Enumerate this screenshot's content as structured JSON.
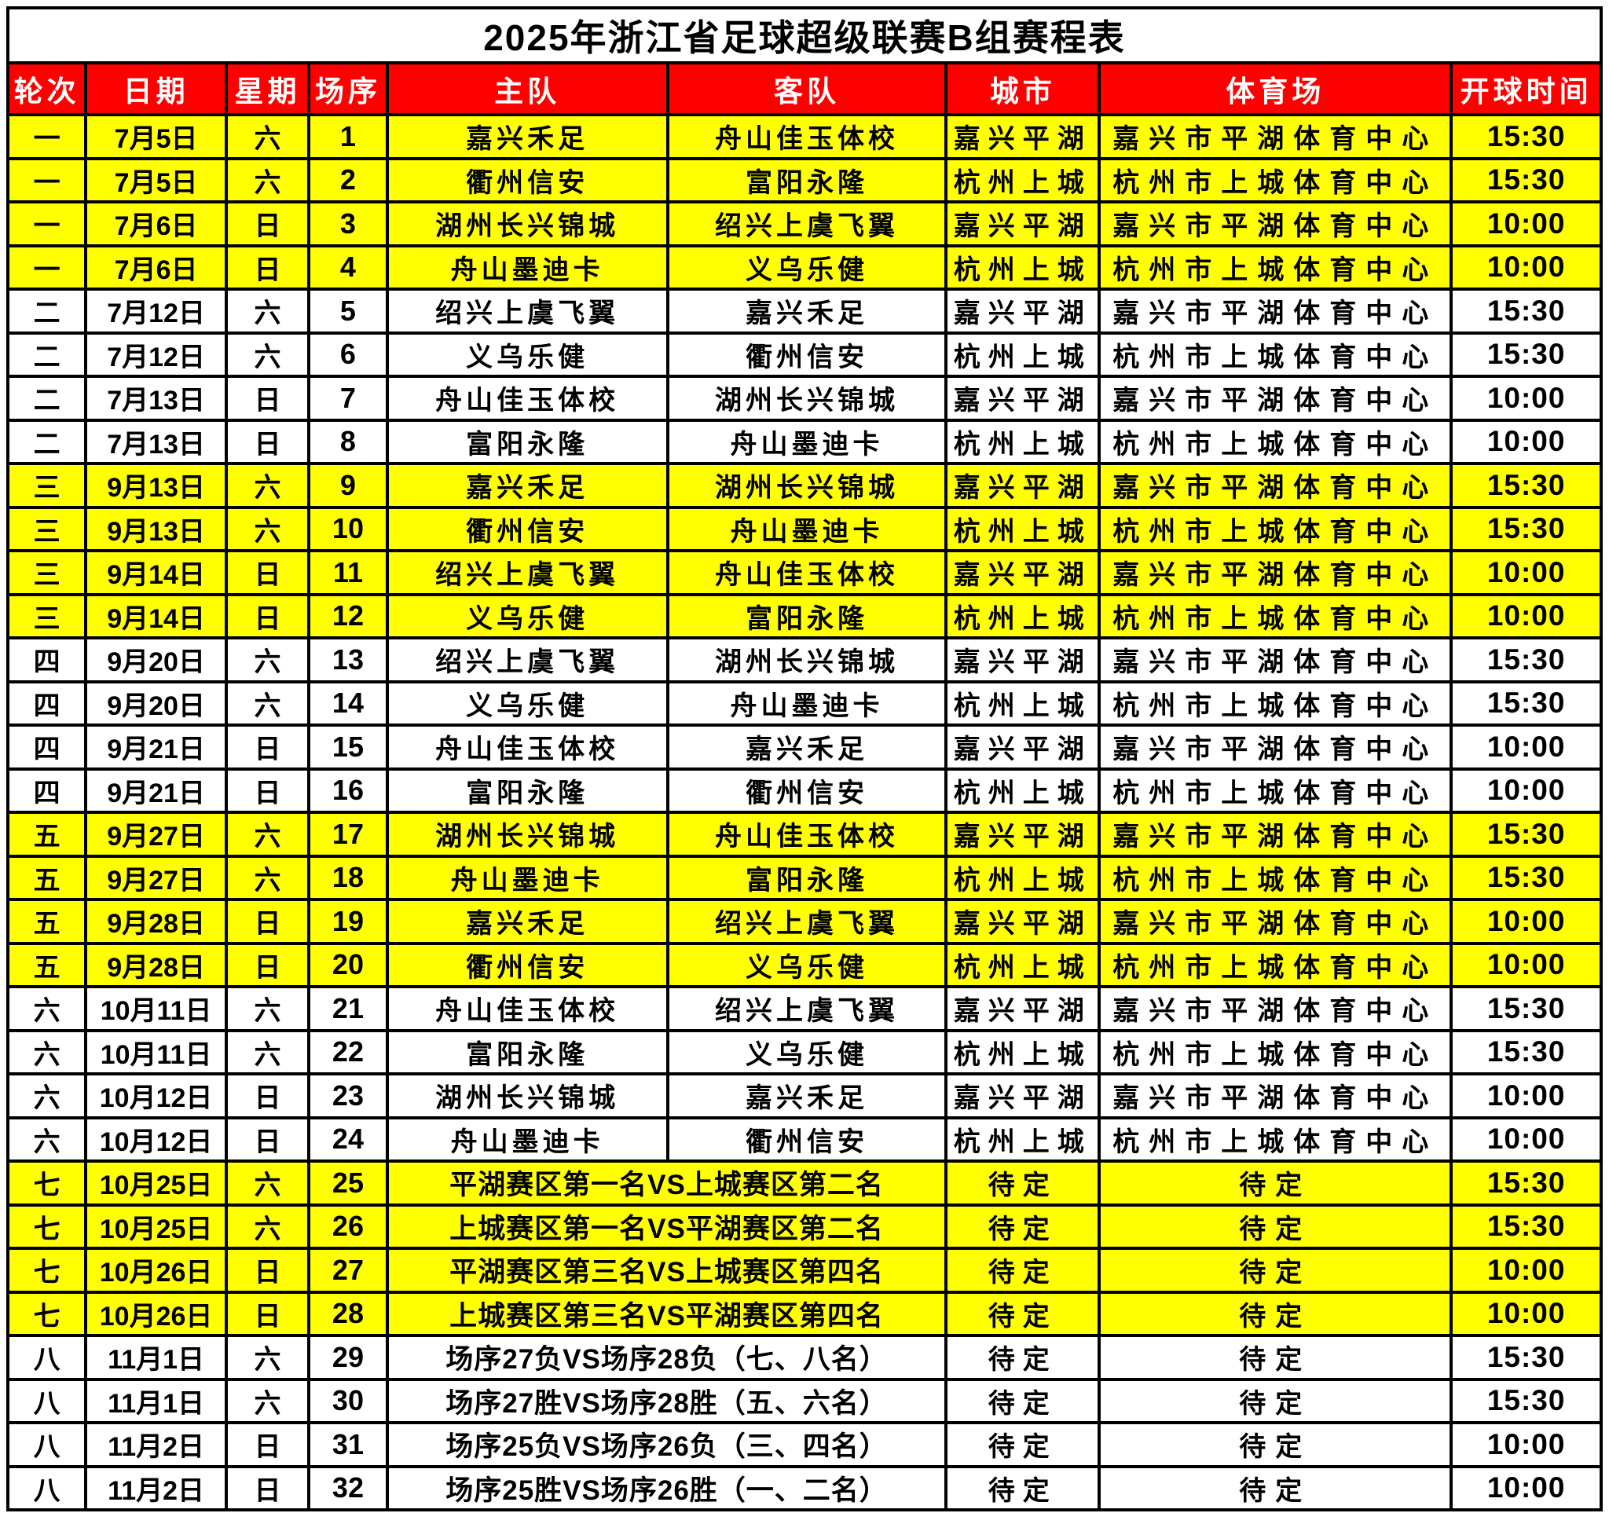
{
  "title": "2025年浙江省足球超级联赛B组赛程表",
  "table": {
    "columns": [
      "轮次",
      "日期",
      "星期",
      "场序",
      "主队",
      "客队",
      "城市",
      "体育场",
      "开球时间"
    ],
    "highlighted_rounds": [
      "一",
      "三",
      "五",
      "七"
    ],
    "colors": {
      "header_bg": "#ff0000",
      "header_text": "#ffffff",
      "highlight_bg": "#ffff00",
      "row_bg": "#ffffff",
      "border": "#000000",
      "body_text": "#000000"
    },
    "rows": [
      {
        "round": "一",
        "date": "7月5日",
        "weekday": "六",
        "match_no": "1",
        "home": "嘉兴禾足",
        "away": "舟山佳玉体校",
        "city": "嘉兴平湖",
        "stadium": "嘉兴市平湖体育中心",
        "time": "15:30"
      },
      {
        "round": "一",
        "date": "7月5日",
        "weekday": "六",
        "match_no": "2",
        "home": "衢州信安",
        "away": "富阳永隆",
        "city": "杭州上城",
        "stadium": "杭州市上城体育中心",
        "time": "15:30"
      },
      {
        "round": "一",
        "date": "7月6日",
        "weekday": "日",
        "match_no": "3",
        "home": "湖州长兴锦城",
        "away": "绍兴上虞飞翼",
        "city": "嘉兴平湖",
        "stadium": "嘉兴市平湖体育中心",
        "time": "10:00"
      },
      {
        "round": "一",
        "date": "7月6日",
        "weekday": "日",
        "match_no": "4",
        "home": "舟山墨迪卡",
        "away": "义乌乐健",
        "city": "杭州上城",
        "stadium": "杭州市上城体育中心",
        "time": "10:00"
      },
      {
        "round": "二",
        "date": "7月12日",
        "weekday": "六",
        "match_no": "5",
        "home": "绍兴上虞飞翼",
        "away": "嘉兴禾足",
        "city": "嘉兴平湖",
        "stadium": "嘉兴市平湖体育中心",
        "time": "15:30"
      },
      {
        "round": "二",
        "date": "7月12日",
        "weekday": "六",
        "match_no": "6",
        "home": "义乌乐健",
        "away": "衢州信安",
        "city": "杭州上城",
        "stadium": "杭州市上城体育中心",
        "time": "15:30"
      },
      {
        "round": "二",
        "date": "7月13日",
        "weekday": "日",
        "match_no": "7",
        "home": "舟山佳玉体校",
        "away": "湖州长兴锦城",
        "city": "嘉兴平湖",
        "stadium": "嘉兴市平湖体育中心",
        "time": "10:00"
      },
      {
        "round": "二",
        "date": "7月13日",
        "weekday": "日",
        "match_no": "8",
        "home": "富阳永隆",
        "away": "舟山墨迪卡",
        "city": "杭州上城",
        "stadium": "杭州市上城体育中心",
        "time": "10:00"
      },
      {
        "round": "三",
        "date": "9月13日",
        "weekday": "六",
        "match_no": "9",
        "home": "嘉兴禾足",
        "away": "湖州长兴锦城",
        "city": "嘉兴平湖",
        "stadium": "嘉兴市平湖体育中心",
        "time": "15:30"
      },
      {
        "round": "三",
        "date": "9月13日",
        "weekday": "六",
        "match_no": "10",
        "home": "衢州信安",
        "away": "舟山墨迪卡",
        "city": "杭州上城",
        "stadium": "杭州市上城体育中心",
        "time": "15:30"
      },
      {
        "round": "三",
        "date": "9月14日",
        "weekday": "日",
        "match_no": "11",
        "home": "绍兴上虞飞翼",
        "away": "舟山佳玉体校",
        "city": "嘉兴平湖",
        "stadium": "嘉兴市平湖体育中心",
        "time": "10:00"
      },
      {
        "round": "三",
        "date": "9月14日",
        "weekday": "日",
        "match_no": "12",
        "home": "义乌乐健",
        "away": "富阳永隆",
        "city": "杭州上城",
        "stadium": "杭州市上城体育中心",
        "time": "10:00"
      },
      {
        "round": "四",
        "date": "9月20日",
        "weekday": "六",
        "match_no": "13",
        "home": "绍兴上虞飞翼",
        "away": "湖州长兴锦城",
        "city": "嘉兴平湖",
        "stadium": "嘉兴市平湖体育中心",
        "time": "15:30"
      },
      {
        "round": "四",
        "date": "9月20日",
        "weekday": "六",
        "match_no": "14",
        "home": "义乌乐健",
        "away": "舟山墨迪卡",
        "city": "杭州上城",
        "stadium": "杭州市上城体育中心",
        "time": "15:30"
      },
      {
        "round": "四",
        "date": "9月21日",
        "weekday": "日",
        "match_no": "15",
        "home": "舟山佳玉体校",
        "away": "嘉兴禾足",
        "city": "嘉兴平湖",
        "stadium": "嘉兴市平湖体育中心",
        "time": "10:00"
      },
      {
        "round": "四",
        "date": "9月21日",
        "weekday": "日",
        "match_no": "16",
        "home": "富阳永隆",
        "away": "衢州信安",
        "city": "杭州上城",
        "stadium": "杭州市上城体育中心",
        "time": "10:00"
      },
      {
        "round": "五",
        "date": "9月27日",
        "weekday": "六",
        "match_no": "17",
        "home": "湖州长兴锦城",
        "away": "舟山佳玉体校",
        "city": "嘉兴平湖",
        "stadium": "嘉兴市平湖体育中心",
        "time": "15:30"
      },
      {
        "round": "五",
        "date": "9月27日",
        "weekday": "六",
        "match_no": "18",
        "home": "舟山墨迪卡",
        "away": "富阳永隆",
        "city": "杭州上城",
        "stadium": "杭州市上城体育中心",
        "time": "15:30"
      },
      {
        "round": "五",
        "date": "9月28日",
        "weekday": "日",
        "match_no": "19",
        "home": "嘉兴禾足",
        "away": "绍兴上虞飞翼",
        "city": "嘉兴平湖",
        "stadium": "嘉兴市平湖体育中心",
        "time": "10:00"
      },
      {
        "round": "五",
        "date": "9月28日",
        "weekday": "日",
        "match_no": "20",
        "home": "衢州信安",
        "away": "义乌乐健",
        "city": "杭州上城",
        "stadium": "杭州市上城体育中心",
        "time": "10:00"
      },
      {
        "round": "六",
        "date": "10月11日",
        "weekday": "六",
        "match_no": "21",
        "home": "舟山佳玉体校",
        "away": "绍兴上虞飞翼",
        "city": "嘉兴平湖",
        "stadium": "嘉兴市平湖体育中心",
        "time": "15:30"
      },
      {
        "round": "六",
        "date": "10月11日",
        "weekday": "六",
        "match_no": "22",
        "home": "富阳永隆",
        "away": "义乌乐健",
        "city": "杭州上城",
        "stadium": "杭州市上城体育中心",
        "time": "15:30"
      },
      {
        "round": "六",
        "date": "10月12日",
        "weekday": "日",
        "match_no": "23",
        "home": "湖州长兴锦城",
        "away": "嘉兴禾足",
        "city": "嘉兴平湖",
        "stadium": "嘉兴市平湖体育中心",
        "time": "10:00"
      },
      {
        "round": "六",
        "date": "10月12日",
        "weekday": "日",
        "match_no": "24",
        "home": "舟山墨迪卡",
        "away": "衢州信安",
        "city": "杭州上城",
        "stadium": "杭州市上城体育中心",
        "time": "10:00"
      },
      {
        "round": "七",
        "date": "10月25日",
        "weekday": "六",
        "match_no": "25",
        "matchup": "平湖赛区第一名VS上城赛区第二名",
        "city": "待定",
        "stadium": "待定",
        "time": "15:30"
      },
      {
        "round": "七",
        "date": "10月25日",
        "weekday": "六",
        "match_no": "26",
        "matchup": "上城赛区第一名VS平湖赛区第二名",
        "city": "待定",
        "stadium": "待定",
        "time": "15:30"
      },
      {
        "round": "七",
        "date": "10月26日",
        "weekday": "日",
        "match_no": "27",
        "matchup": "平湖赛区第三名VS上城赛区第四名",
        "city": "待定",
        "stadium": "待定",
        "time": "10:00"
      },
      {
        "round": "七",
        "date": "10月26日",
        "weekday": "日",
        "match_no": "28",
        "matchup": "上城赛区第三名VS平湖赛区第四名",
        "city": "待定",
        "stadium": "待定",
        "time": "10:00"
      },
      {
        "round": "八",
        "date": "11月1日",
        "weekday": "六",
        "match_no": "29",
        "matchup": "场序27负VS场序28负（七、八名）",
        "city": "待定",
        "stadium": "待定",
        "time": "15:30"
      },
      {
        "round": "八",
        "date": "11月1日",
        "weekday": "六",
        "match_no": "30",
        "matchup": "场序27胜VS场序28胜（五、六名）",
        "city": "待定",
        "stadium": "待定",
        "time": "15:30"
      },
      {
        "round": "八",
        "date": "11月2日",
        "weekday": "日",
        "match_no": "31",
        "matchup": "场序25负VS场序26负（三、四名）",
        "city": "待定",
        "stadium": "待定",
        "time": "10:00"
      },
      {
        "round": "八",
        "date": "11月2日",
        "weekday": "日",
        "match_no": "32",
        "matchup": "场序25胜VS场序26胜（一、二名）",
        "city": "待定",
        "stadium": "待定",
        "time": "10:00"
      }
    ]
  }
}
